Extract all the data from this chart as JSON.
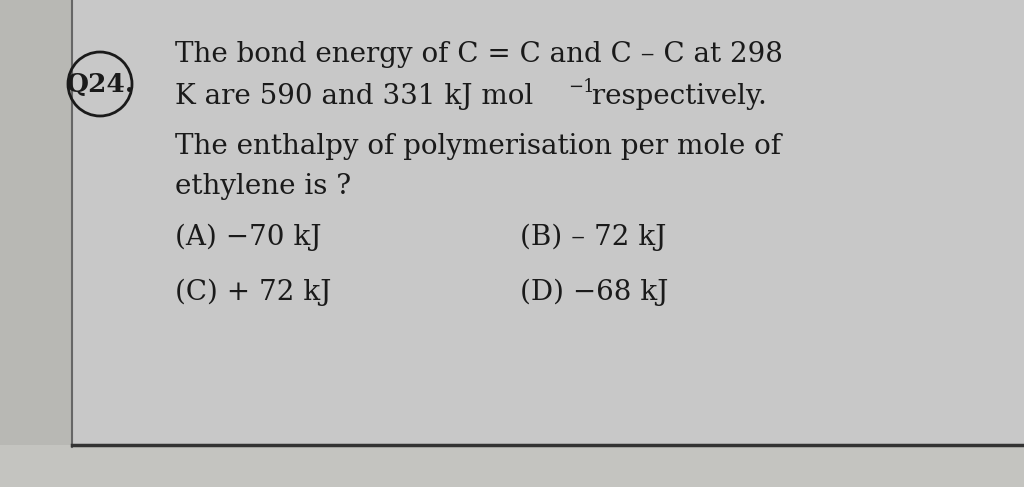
{
  "bg_color": "#c8c8c8",
  "main_color": "#d8d8d4",
  "text_color": "#1a1a1a",
  "left_bar_color": "#b8b8b4",
  "separator_color": "#555555",
  "bottom_bar_color": "#c4c4c0",
  "line1": "The bond energy of C = C and C – C at 298",
  "line2_pre": "K are 590 and 331 kJ mol",
  "line2_sup": "−1",
  "line2_post": " respectively.",
  "line3": "The enthalpy of polymerisation per mole of",
  "line4": "ethylene is ?",
  "opt_A": "(A) −70 kJ",
  "opt_B": "(B) – 72 kJ",
  "opt_C": "(C) + 72 kJ",
  "opt_D": "(D) −68 kJ",
  "qnum": "Q24.",
  "font_size": 20,
  "font_size_qnum": 19,
  "font_size_sup": 13
}
